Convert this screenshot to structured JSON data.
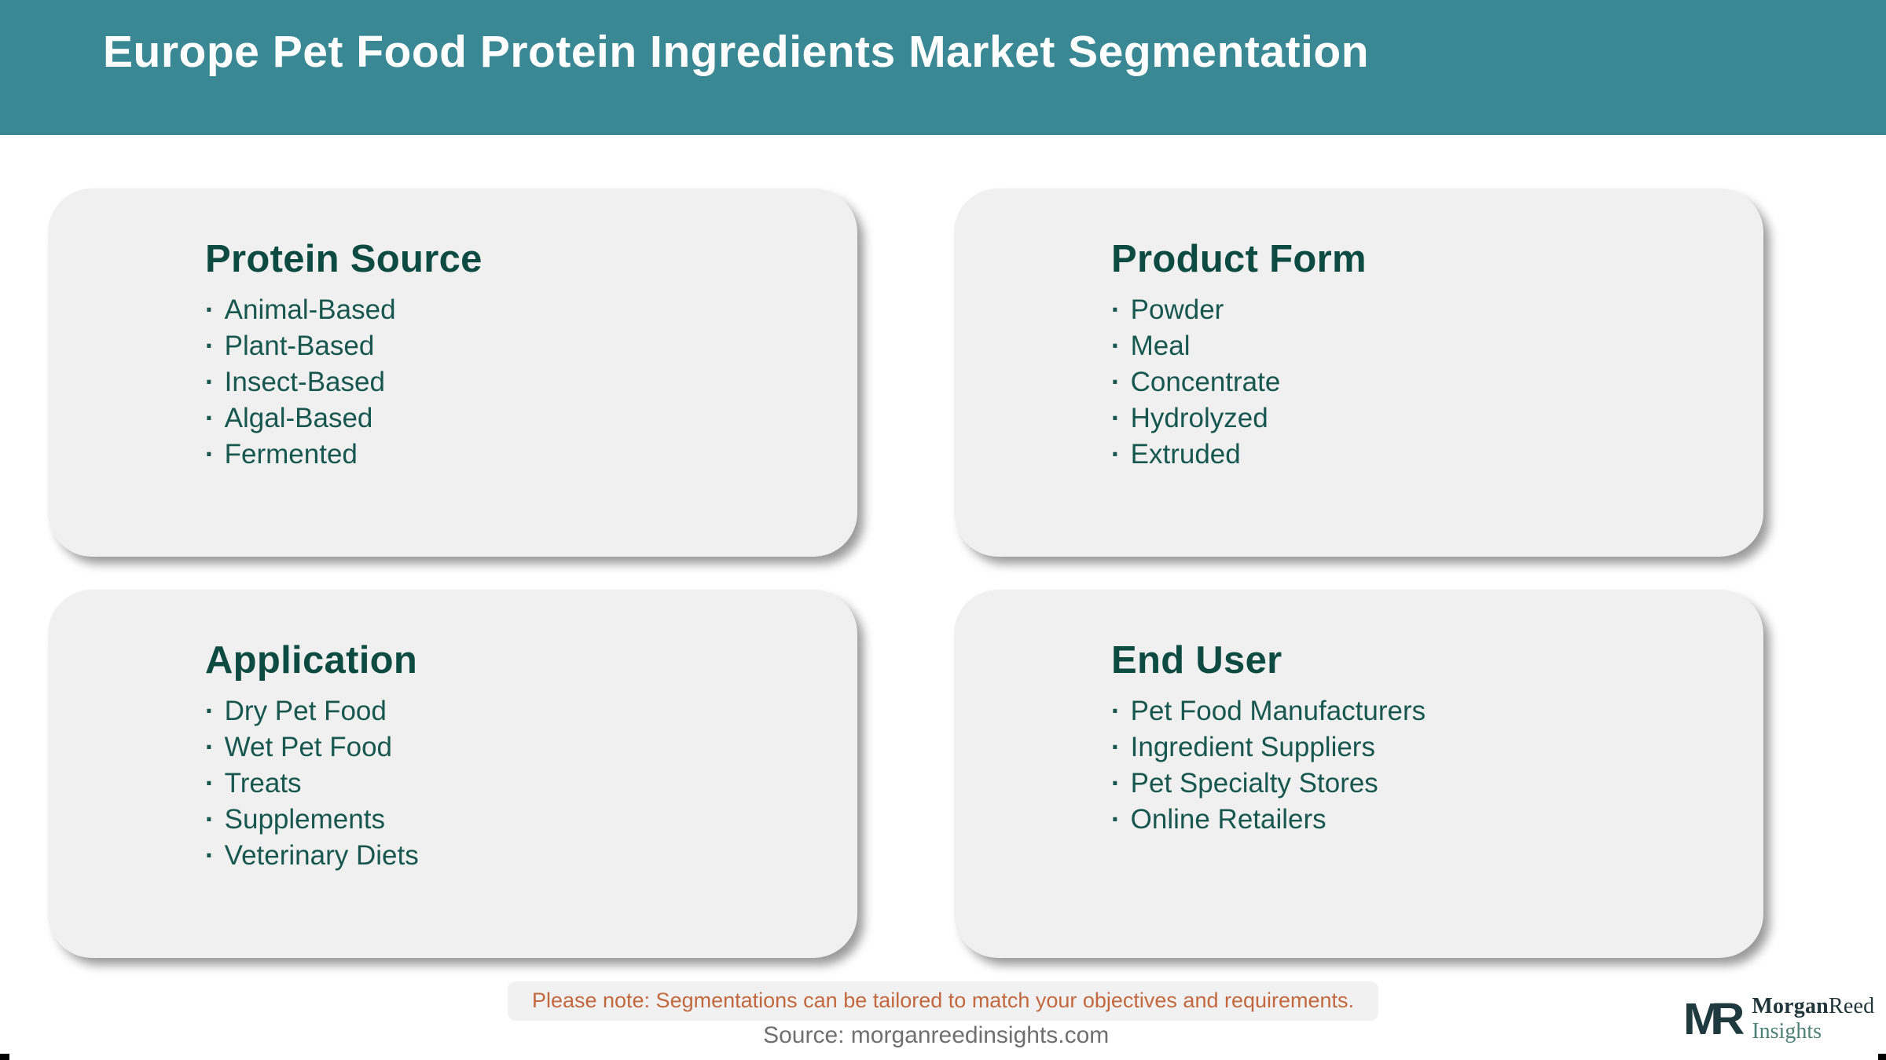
{
  "header": {
    "title": "Europe Pet Food Protein Ingredients Market Segmentation"
  },
  "bullet_char": "·",
  "cards": [
    {
      "title": "Protein Source",
      "items": [
        "Animal-Based",
        "Plant-Based",
        "Insect-Based",
        "Algal-Based",
        "Fermented"
      ]
    },
    {
      "title": "Product Form",
      "items": [
        "Powder",
        "Meal",
        "Concentrate",
        "Hydrolyzed",
        "Extruded"
      ]
    },
    {
      "title": "Application",
      "items": [
        "Dry Pet Food",
        "Wet Pet Food",
        "Treats",
        "Supplements",
        "Veterinary Diets"
      ]
    },
    {
      "title": "End User",
      "items": [
        "Pet Food Manufacturers",
        "Ingredient Suppliers",
        "Pet Specialty Stores",
        "Online Retailers"
      ]
    }
  ],
  "footer": {
    "note": "Please note: Segmentations can be tailored to match your objectives and requirements.",
    "source": "Source: morganreedinsights.com",
    "logo": {
      "monogram_m": "M",
      "monogram_r": "R",
      "name_bold": "Morgan",
      "name_regular": "Reed",
      "tagline": "Insights"
    }
  },
  "colors": {
    "header_bg": "#398894",
    "header_text": "#ffffff",
    "card_bg": "#f0f0f0",
    "card_title": "#0d4a42",
    "card_item": "#175750",
    "note_text": "#c3683e",
    "note_bg": "#f1f1f1",
    "source_text": "#6f6f6f",
    "logo_dark": "#1e3a3e",
    "logo_teal": "#4c8173"
  }
}
